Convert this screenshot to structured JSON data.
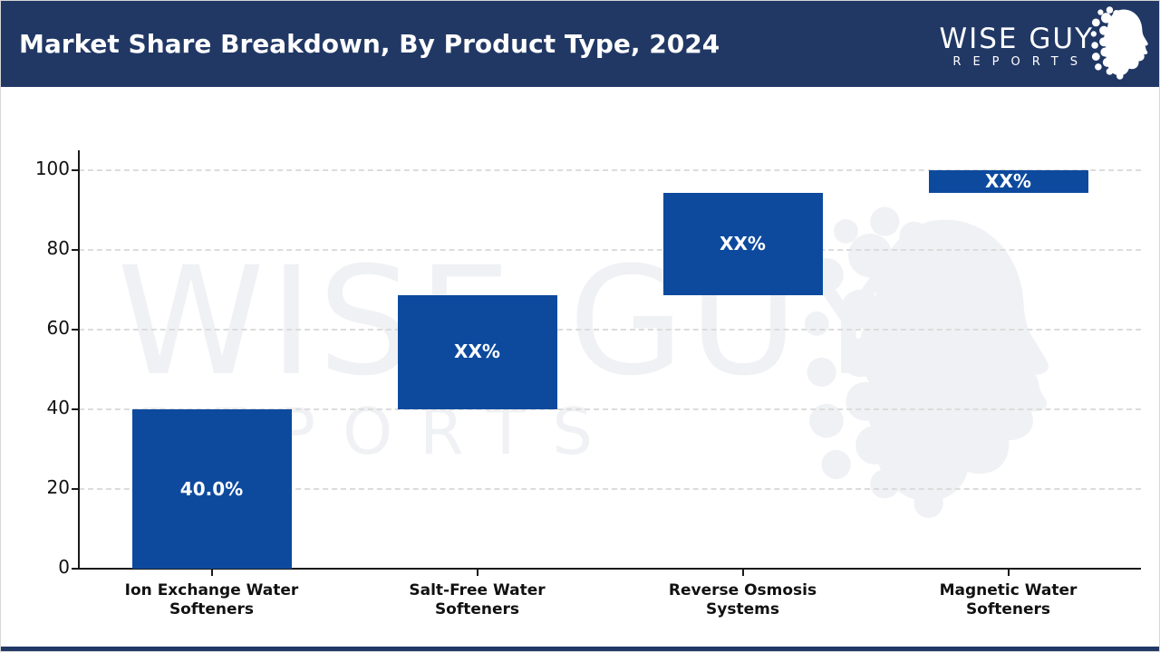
{
  "header": {
    "title": "Market Share Breakdown, By Product Type, 2024",
    "logo": {
      "line1": "WISE GUY",
      "line2": "REPORTS"
    }
  },
  "watermark": {
    "line1": "WISE GUY",
    "line2": "REPORTS"
  },
  "chart_data": {
    "type": "bar",
    "subtype": "stacked-waterfall",
    "title": "Market Share Breakdown, By Product Type, 2024",
    "categories": [
      "Ion Exchange Water\nSofteners",
      "Salt-Free Water\nSofteners",
      "Reverse Osmosis\nSystems",
      "Magnetic Water\nSofteners"
    ],
    "values": [
      40.0,
      28.6,
      25.7,
      5.7
    ],
    "cumulative_start": [
      0,
      40.0,
      68.6,
      94.3
    ],
    "value_labels": [
      "40.0%",
      "XX%",
      "XX%",
      "XX%"
    ],
    "xlabel": "",
    "ylabel": "",
    "ylim": [
      0,
      100
    ],
    "yticks": [
      0,
      20,
      40,
      60,
      80,
      100
    ],
    "grid": "horizontal-dashed",
    "legend": "none",
    "bar_color": "#0d4a9e",
    "value_label_color": "#ffffff"
  },
  "colors": {
    "header_bg": "#213865",
    "footer_bg": "#213865",
    "bar": "#0d4a9e",
    "grid": "#dcdcdc",
    "axis": "#1a1a1a",
    "watermark": "#f0f1f4"
  }
}
